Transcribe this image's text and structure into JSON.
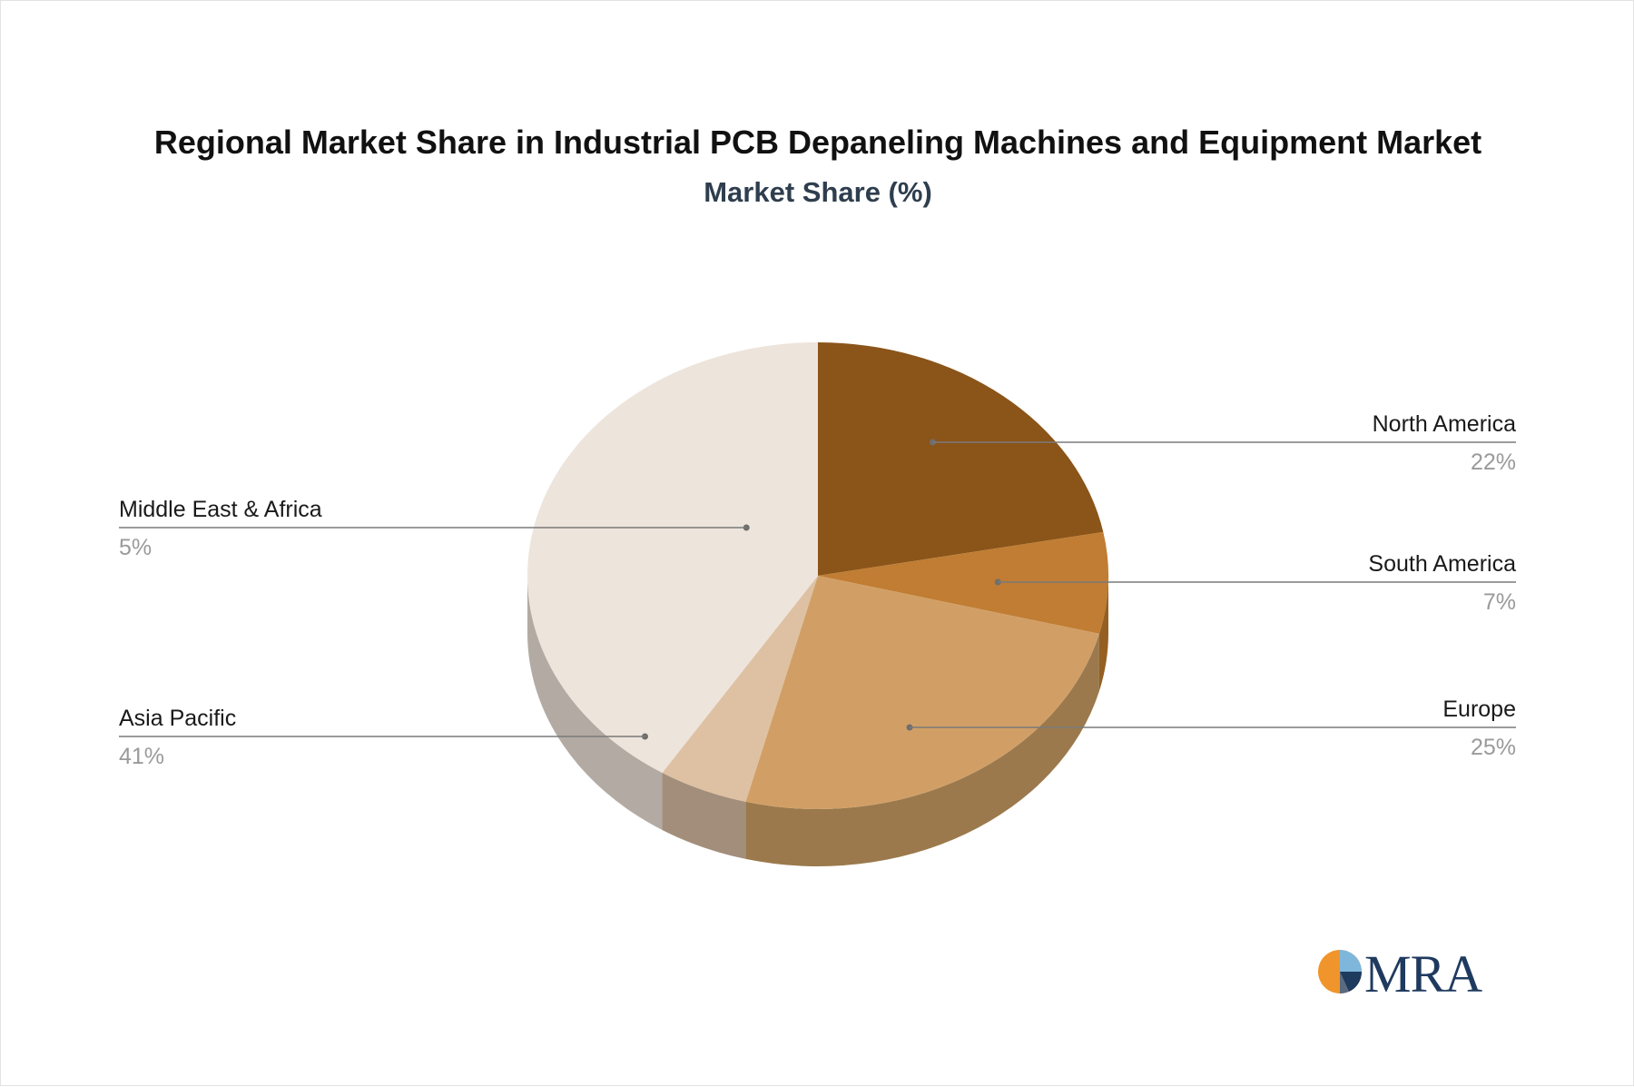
{
  "chart_data": {
    "type": "pie",
    "title": "Regional Market Share in Industrial PCB Depaneling Machines and Equipment Market",
    "subtitle": "Market Share (%)",
    "slices": [
      {
        "label": "North America",
        "value": 22,
        "display": "22%",
        "color": "#8b5419",
        "side": "#6a3f12",
        "label_side": "right"
      },
      {
        "label": "South America",
        "value": 7,
        "display": "7%",
        "color": "#c07d33",
        "side": "#955f23",
        "label_side": "right"
      },
      {
        "label": "Europe",
        "value": 25,
        "display": "25%",
        "color": "#d19f66",
        "side": "#9b794c",
        "label_side": "right"
      },
      {
        "label": "Middle East & Africa",
        "value": 5,
        "display": "5%",
        "color": "#ddc1a2",
        "side": "#a28e7a",
        "label_side": "left"
      },
      {
        "label": "Asia Pacific",
        "value": 41,
        "display": "41%",
        "color": "#ede4dc",
        "side": "#b3aba3",
        "label_side": "left"
      }
    ]
  },
  "logo": {
    "text": "MRA",
    "colors": [
      "#f0952b",
      "#1f3a5f",
      "#7fb7dc"
    ]
  }
}
